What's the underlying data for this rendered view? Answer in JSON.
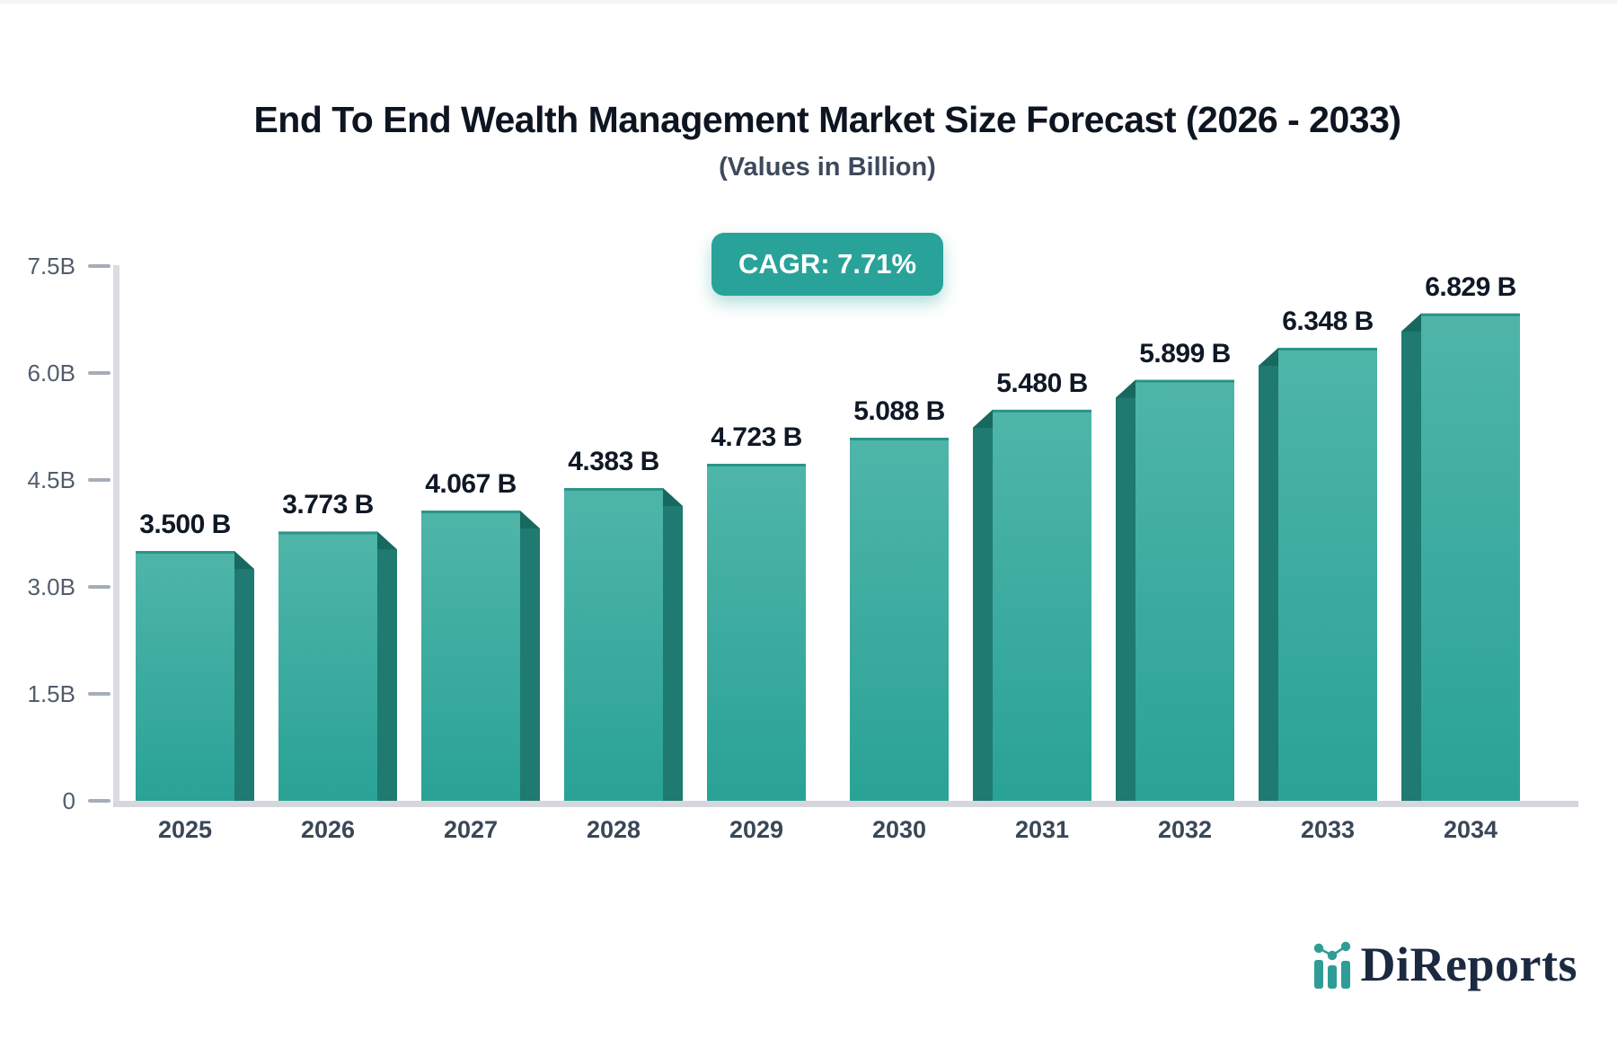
{
  "page": {
    "top_border_color": "#f2f4f7",
    "background": "#ffffff"
  },
  "brand": {
    "logo_text": "DiReports",
    "logo_icon": "mini-bar-chart-with-dots",
    "logo_text_color": "#1b2a40",
    "logo_icon_color": "#2f9d95"
  },
  "chart_data": {
    "type": "bar",
    "title": "End To End Wealth Management Market Size Forecast (2026 - 2033)",
    "subtitle": "(Values in Billion)",
    "annotation": "CAGR: 7.71%",
    "categories": [
      "2025",
      "2026",
      "2027",
      "2028",
      "2029",
      "2030",
      "2031",
      "2032",
      "2033",
      "2034"
    ],
    "values": [
      3.5,
      3.773,
      4.067,
      4.383,
      4.723,
      5.088,
      5.48,
      5.899,
      6.348,
      6.829
    ],
    "value_labels": [
      "3.500 B",
      "3.773 B",
      "4.067 B",
      "4.383 B",
      "4.723 B",
      "5.088 B",
      "5.480 B",
      "5.899 B",
      "6.348 B",
      "6.829 B"
    ],
    "xlabel": "",
    "ylabel": "",
    "ylim": [
      0,
      7.5
    ],
    "y_ticks": [
      {
        "value": 0.0,
        "label": "0"
      },
      {
        "value": 1.5,
        "label": "1.5B"
      },
      {
        "value": 3.0,
        "label": "3.0B"
      },
      {
        "value": 4.5,
        "label": "4.5B"
      },
      {
        "value": 6.0,
        "label": "6.0B"
      },
      {
        "value": 7.5,
        "label": "7.5B"
      }
    ],
    "grid": false,
    "legend": null,
    "depth_side": [
      "right",
      "right",
      "right",
      "right",
      "none",
      "none",
      "left",
      "left",
      "left",
      "left"
    ],
    "colors": {
      "bar_face_top": "#4fb5a9",
      "bar_face_bottom": "#2aa296",
      "bar_top_line": "#2a9488",
      "bar_side": "#1f7a71",
      "bar_chamfer": "#17695f",
      "badge_bg": "#29a399",
      "badge_text": "#ffffff",
      "axis": "#d5d7dc",
      "tick_text": "#515d6b",
      "category_text": "#3a4757",
      "value_text": "#101826",
      "title_text": "#0d1521",
      "subtitle_text": "#3d4a5c"
    }
  }
}
